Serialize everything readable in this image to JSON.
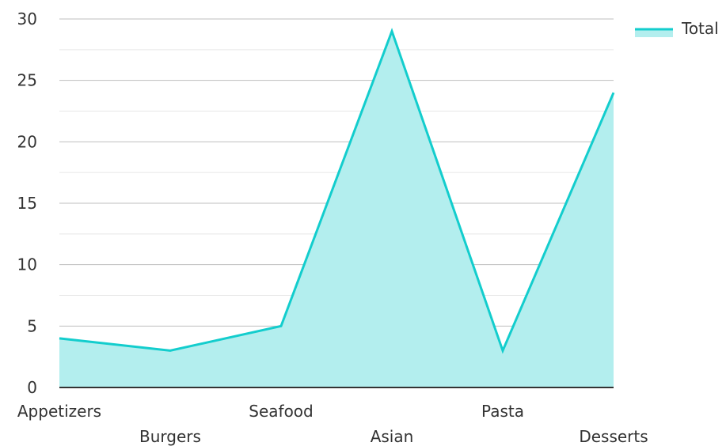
{
  "chart_data": {
    "type": "area",
    "categories": [
      "Appetizers",
      "Burgers",
      "Seafood",
      "Asian",
      "Pasta",
      "Desserts"
    ],
    "series": [
      {
        "name": "Total",
        "values": [
          4,
          3,
          5,
          29,
          3,
          24
        ]
      }
    ],
    "ylim": [
      0,
      30
    ],
    "y_ticks": [
      0,
      5,
      10,
      15,
      20,
      25,
      30
    ],
    "grid": true,
    "legend": "top-right",
    "colors": {
      "line": "#13cdcd",
      "fill": "#b3eeee",
      "grid_major": "#bfbfbf",
      "grid_minor": "#e6e6e6",
      "axis": "#333333"
    }
  }
}
